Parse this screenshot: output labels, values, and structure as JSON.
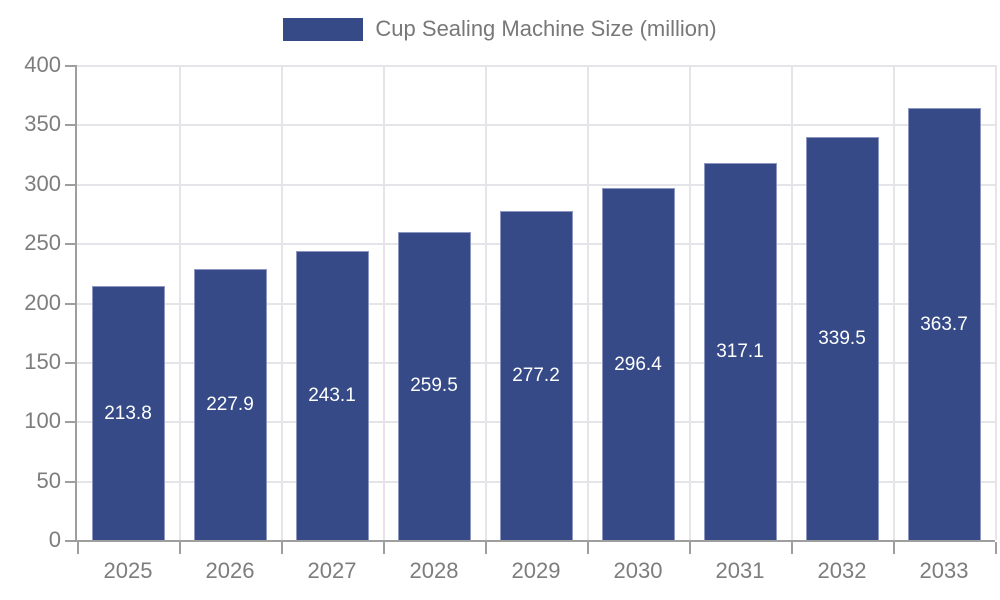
{
  "legend": {
    "label": "Cup Sealing Machine Size (million)"
  },
  "colors": {
    "bar": "#354a87",
    "bar_border": "#8d97c2",
    "grid": "#e4e4e9",
    "axis": "#9e9e9e",
    "tick_label": "#7d7d7d",
    "legend_text": "#787878",
    "data_label": "#ffffff",
    "background": "#ffffff"
  },
  "chart_data": {
    "type": "bar",
    "title": "Cup Sealing Machine Size (million)",
    "categories": [
      "2025",
      "2026",
      "2027",
      "2028",
      "2029",
      "2030",
      "2031",
      "2032",
      "2033"
    ],
    "series": [
      {
        "name": "Cup Sealing Machine Size (million)",
        "values": [
          213.8,
          227.9,
          243.1,
          259.5,
          277.2,
          296.4,
          317.1,
          339.5,
          363.7
        ]
      }
    ],
    "data_labels": [
      213.8,
      227.9,
      243.1,
      259.5,
      277.2,
      296.4,
      317.1,
      339.5,
      363.7
    ],
    "xlabel": "",
    "ylabel": "",
    "ylim": [
      0,
      400
    ],
    "yticks": [
      0,
      50,
      100,
      150,
      200,
      250,
      300,
      350,
      400
    ],
    "grid": true,
    "legend_position": "top",
    "data_label_position": "inside-center"
  }
}
